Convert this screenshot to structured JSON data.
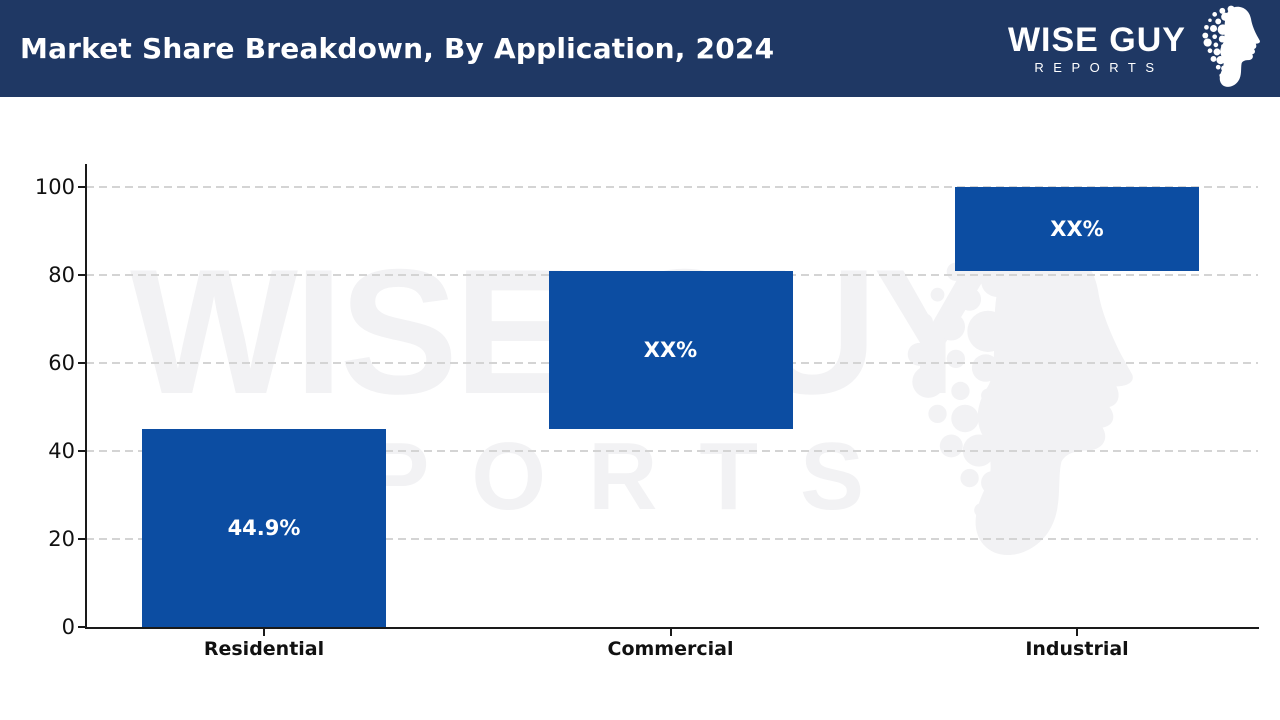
{
  "header": {
    "title": "Market Share Breakdown, By Application, 2024",
    "logo": {
      "wordmark": "WISE GUY",
      "tagline": "REPORTS"
    }
  },
  "watermark": {
    "wordmark": "WISE GUY",
    "tagline": "REPORTS"
  },
  "chart_data": {
    "type": "bar",
    "subtype": "waterfall",
    "title": "Market Share Breakdown, By Application, 2024",
    "categories": [
      "Residential",
      "Commercial",
      "Industrial"
    ],
    "segments": [
      {
        "category": "Residential",
        "start": 0,
        "end": 44.9,
        "label": "44.9%"
      },
      {
        "category": "Commercial",
        "start": 44.9,
        "end": 80.8,
        "label": "XX%"
      },
      {
        "category": "Industrial",
        "start": 80.8,
        "end": 100,
        "label": "XX%"
      }
    ],
    "xlabel": "",
    "ylabel": "",
    "ylim": [
      0,
      105
    ],
    "yticks": [
      0,
      20,
      40,
      60,
      80,
      100
    ],
    "grid": "dashed horizontal",
    "legend_position": "none",
    "bar_color": "#0c4da2",
    "value_label_color": "#ffffff"
  },
  "colors": {
    "header_bg": "#1f3864",
    "bar_blue": "#0c4da2",
    "grid_line": "#d4d4d4",
    "axis_line": "#1a1a1a",
    "watermark": "#f2f2f4",
    "background": "#ffffff"
  }
}
